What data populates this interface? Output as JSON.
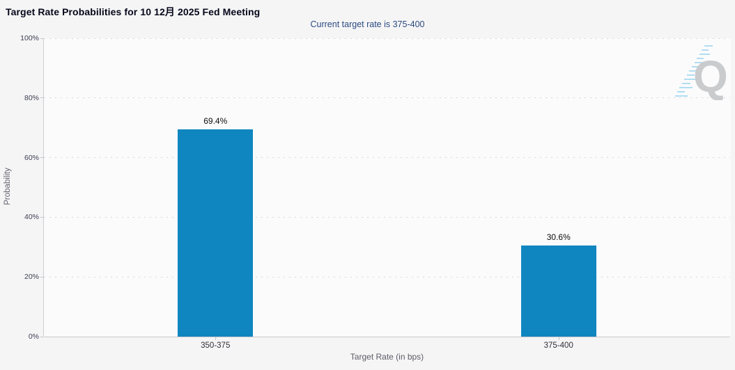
{
  "header": {
    "title": "Target Rate Probabilities for 10 12月 2025 Fed Meeting",
    "subtitle": "Current target rate is 375-400"
  },
  "menu": {
    "icon": "hamburger-menu-icon"
  },
  "watermark": {
    "letter": "Q",
    "icon": "quikstrike-logo-icon"
  },
  "chart_data": {
    "type": "bar",
    "title": "Target Rate Probabilities for 10 12月 2025 Fed Meeting",
    "subtitle": "Current target rate is 375-400",
    "categories": [
      "350-375",
      "375-400"
    ],
    "values": [
      69.4,
      30.6
    ],
    "value_labels": [
      "69.4%",
      "30.6%"
    ],
    "xlabel": "Target Rate (in bps)",
    "ylabel": "Probability",
    "ylim": [
      0,
      100
    ],
    "ytick_step": 20,
    "ytick_labels": [
      "0%",
      "20%",
      "40%",
      "60%",
      "80%",
      "100%"
    ],
    "grid": "horizontal-dotted",
    "legend": "none",
    "bar_color": "#0f86c0"
  }
}
